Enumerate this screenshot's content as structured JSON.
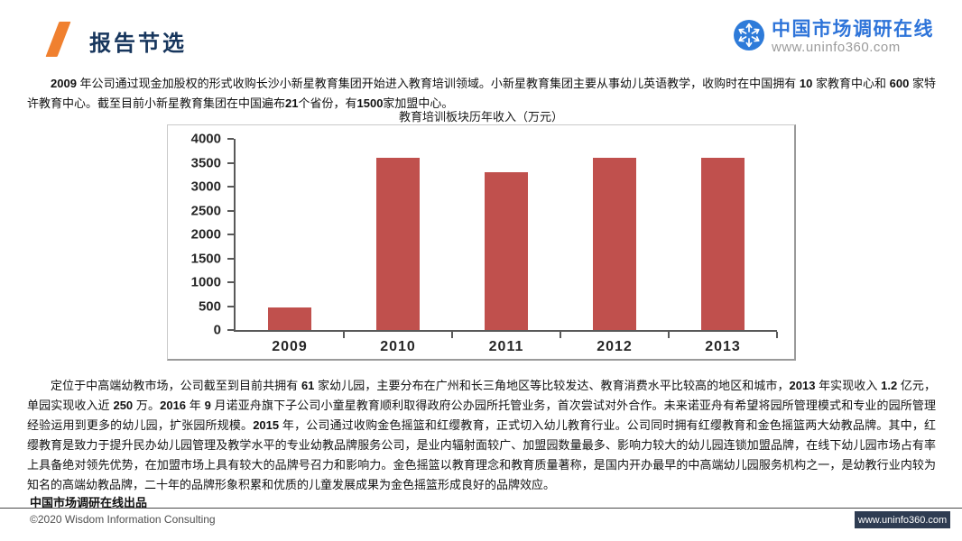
{
  "page": {
    "title": "报告节选"
  },
  "brand": {
    "name": "中国市场调研在线",
    "url": "www.uninfo360.com"
  },
  "paragraphs": {
    "p1": [
      {
        "t": "2009",
        "b": true
      },
      {
        "t": " 年公司通过现金加股权的形式收购长沙小新星教育集团开始进入教育培训领域。小新星教育集团主要从事幼儿英语教学，收购时在中国拥有 "
      },
      {
        "t": "10",
        "b": true
      },
      {
        "t": " 家教育中心和 "
      },
      {
        "t": "600",
        "b": true
      },
      {
        "t": " 家特许教育中心。截至目前小新星教育集团在中国遍布"
      },
      {
        "t": "21",
        "b": true
      },
      {
        "t": "个省份，有"
      },
      {
        "t": "1500",
        "b": true
      },
      {
        "t": "家加盟中心。"
      }
    ],
    "p2": [
      {
        "t": "定位于中高端幼教市场，公司截至到目前共拥有 "
      },
      {
        "t": "61",
        "b": true
      },
      {
        "t": " 家幼儿园，主要分布在广州和长三角地区等比较发达、教育消费水平比较高的地区和城市，"
      },
      {
        "t": "2013",
        "b": true
      },
      {
        "t": " 年实现收入 "
      },
      {
        "t": "1.2",
        "b": true
      },
      {
        "t": " 亿元，单园实现收入近 "
      },
      {
        "t": "250",
        "b": true
      },
      {
        "t": " 万。"
      },
      {
        "t": "2016",
        "b": true
      },
      {
        "t": " 年 "
      },
      {
        "t": "9",
        "b": true
      },
      {
        "t": " 月诺亚舟旗下子公司小童星教育顺利取得政府公办园所托管业务，首次尝试对外合作。未来诺亚舟有希望将园所管理模式和专业的园所管理经验运用到更多的幼儿园，扩张园所规模。"
      },
      {
        "t": "2015",
        "b": true
      },
      {
        "t": " 年，公司通过收购金色摇篮和红缨教育，正式切入幼儿教育行业。公司同时拥有红缨教育和金色摇篮两大幼教品牌。其中，红缨教育是致力于提升民办幼儿园管理及教学水平的专业幼教品牌服务公司，是业内辐射面较广、加盟园数量最多、影响力较大的幼儿园连锁加盟品牌，在线下幼儿园市场占有率上具备绝对领先优势，在加盟市场上具有较大的品牌号召力和影响力。金色摇篮以教育理念和教育质量著称，是国内开办最早的中高端幼儿园服务机构之一，是幼教行业内较为知名的高端幼教品牌，二十年的品牌形象积累和优质的儿童发展成果为金色摇篮形成良好的品牌效应。"
      }
    ]
  },
  "chart_data": {
    "type": "bar",
    "title": "教育培训板块历年收入（万元）",
    "categories": [
      "2009",
      "2010",
      "2011",
      "2012",
      "2013"
    ],
    "values": [
      470,
      3600,
      3310,
      3600,
      3600
    ],
    "xlabel": "",
    "ylabel": "",
    "ylim": [
      0,
      4000
    ],
    "yticks": [
      0,
      500,
      1000,
      1500,
      2000,
      2500,
      3000,
      3500,
      4000
    ],
    "bar_color": "#C0504D",
    "grid": false,
    "legend": "none"
  },
  "footer": {
    "producer": "中国市场调研在线出品",
    "copyright": "©2020 Wisdom Information Consulting",
    "site": "www.uninfo360.com"
  },
  "colors": {
    "accent_orange": "#F0802F",
    "title_navy": "#17365D",
    "brand_blue": "#2E74D9",
    "bar_red": "#C0504D",
    "footer_bar": "#2E3C52"
  }
}
